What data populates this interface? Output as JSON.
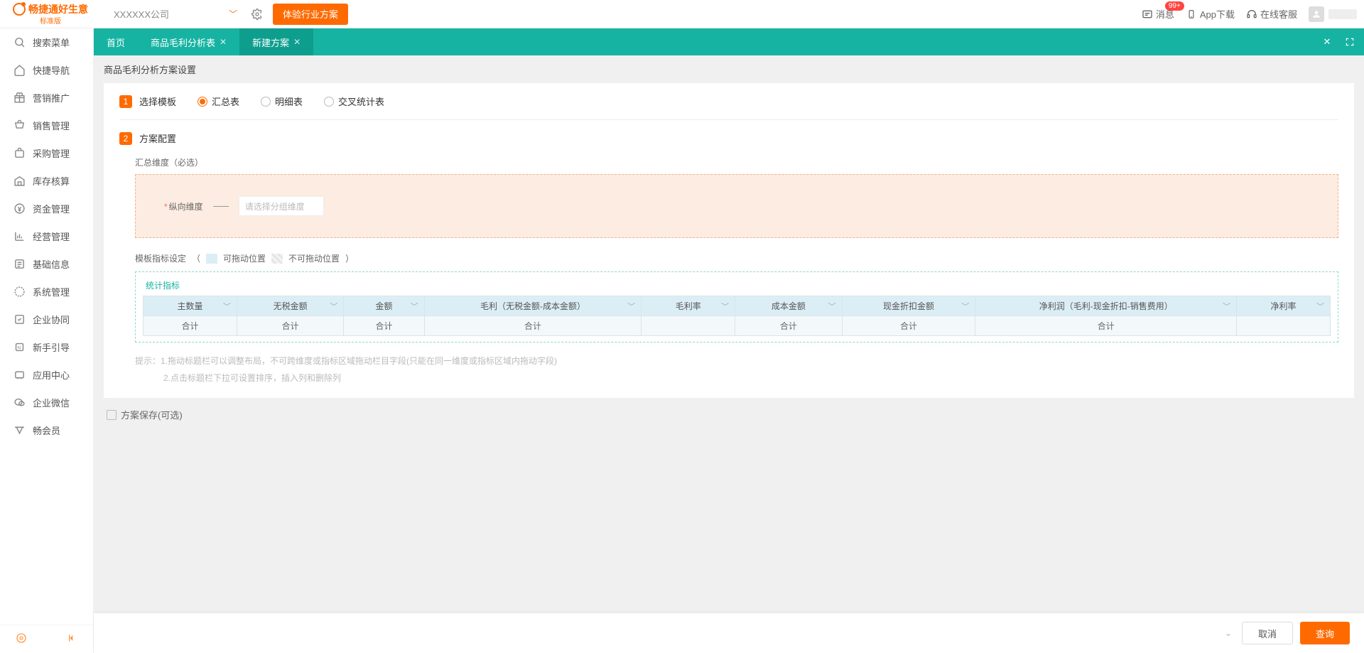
{
  "brand": {
    "name": "畅捷通好生意",
    "edition": "标准版"
  },
  "company": {
    "name": "XXXXXX公司"
  },
  "cta": "体验行业方案",
  "topLinks": {
    "messages": "消息",
    "messagesBadge": "99+",
    "appDownload": "App下载",
    "onlineService": "在线客服"
  },
  "sidebar": [
    {
      "icon": "search",
      "label": "搜索菜单"
    },
    {
      "icon": "home",
      "label": "快捷导航"
    },
    {
      "icon": "gift",
      "label": "营销推广"
    },
    {
      "icon": "cart",
      "label": "销售管理"
    },
    {
      "icon": "bag",
      "label": "采购管理"
    },
    {
      "icon": "warehouse",
      "label": "库存核算"
    },
    {
      "icon": "money",
      "label": "资金管理"
    },
    {
      "icon": "chart",
      "label": "经营管理"
    },
    {
      "icon": "info",
      "label": "基础信息"
    },
    {
      "icon": "system",
      "label": "系统管理"
    },
    {
      "icon": "collab",
      "label": "企业协同"
    },
    {
      "icon": "new",
      "label": "新手引导"
    },
    {
      "icon": "app",
      "label": "应用中心"
    },
    {
      "icon": "wechat",
      "label": "企业微信"
    },
    {
      "icon": "vip",
      "label": "畅会员"
    }
  ],
  "tabs": [
    {
      "label": "首页",
      "closable": false,
      "active": false
    },
    {
      "label": "商品毛利分析表",
      "closable": true,
      "active": false
    },
    {
      "label": "新建方案",
      "closable": true,
      "active": true
    }
  ],
  "pageTitle": "商品毛利分析方案设置",
  "step1": {
    "label": "选择模板",
    "options": [
      "汇总表",
      "明细表",
      "交叉统计表"
    ],
    "selected": 0
  },
  "step2": {
    "label": "方案配置"
  },
  "dimension": {
    "sectionLabel": "汇总维度（必选）",
    "fieldLabel": "纵向维度",
    "placeholder": "请选择分组维度"
  },
  "metricsLegend": {
    "label": "模板指标设定",
    "draggable": "可拖动位置",
    "fixed": "不可拖动位置"
  },
  "metricsTable": {
    "sectionTitle": "统计指标",
    "columns": [
      "主数量",
      "无税金额",
      "金额",
      "毛利（无税金额-成本金额）",
      "毛利率",
      "成本金额",
      "现金折扣金额",
      "净利润（毛利-现金折扣-销售费用）",
      "净利率"
    ],
    "totalsRow": [
      "合计",
      "合计",
      "合计",
      "合计",
      "",
      "合计",
      "合计",
      "合计",
      ""
    ]
  },
  "hints": {
    "prefix": "提示：",
    "line1": "1.拖动标题栏可以调整布局，不可跨维度或指标区域拖动栏目字段(只能在同一维度或指标区域内拖动字段)",
    "line2": "2.点击标题栏下拉可设置排序，插入列和删除列"
  },
  "saveOption": "方案保存(可选)",
  "footer": {
    "cancel": "取消",
    "query": "查询"
  }
}
